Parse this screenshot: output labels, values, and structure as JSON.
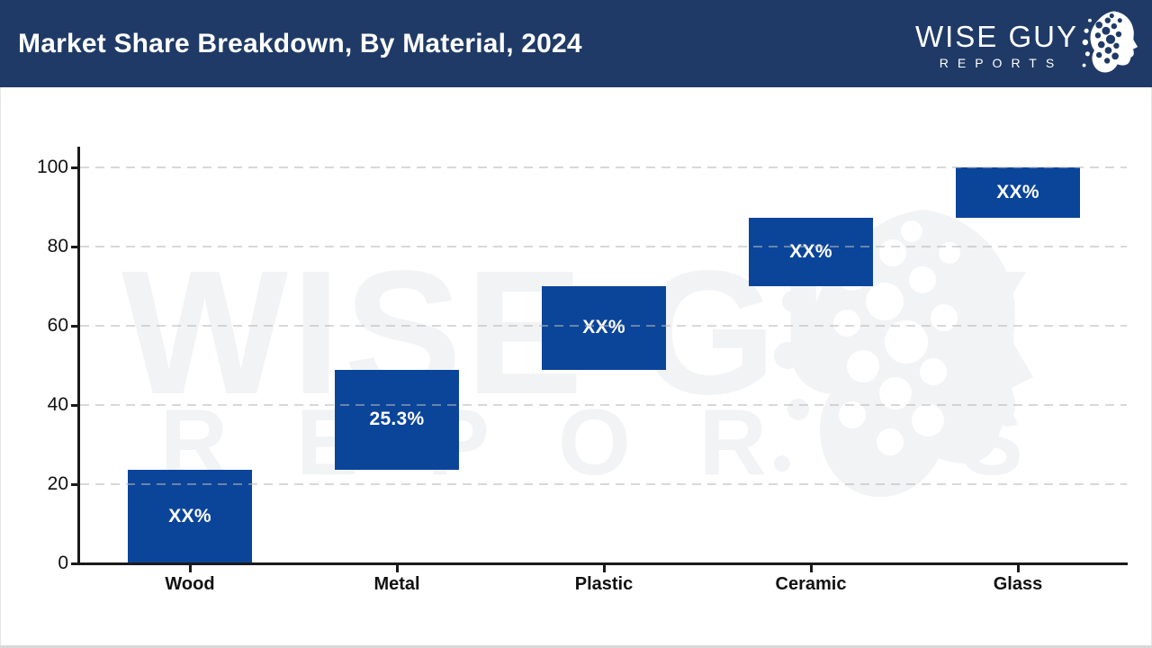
{
  "header": {
    "title": "Market Share Breakdown, By Material, 2024",
    "logo": {
      "line1": "WISE GUY",
      "line2": "REPORTS"
    }
  },
  "watermark": {
    "line1": "WISE GUY",
    "line2": "REPORTS"
  },
  "colors": {
    "header_bg": "#1F3A66",
    "bar": "#0B459A",
    "bar_label": "#FFFFFF",
    "axis": "#1A1A1A",
    "grid": "#D9D9D9",
    "watermark": "#F2F3F5"
  },
  "chart_data": {
    "type": "bar",
    "subtype": "waterfall",
    "title": "Market Share Breakdown, By Material, 2024",
    "categories": [
      "Wood",
      "Metal",
      "Plastic",
      "Ceramic",
      "Glass"
    ],
    "segments": [
      {
        "category": "Wood",
        "start": 0,
        "end": 23.6,
        "label": "XX%"
      },
      {
        "category": "Metal",
        "start": 23.6,
        "end": 48.9,
        "label": "25.3%"
      },
      {
        "category": "Plastic",
        "start": 48.9,
        "end": 70.0,
        "label": "XX%"
      },
      {
        "category": "Ceramic",
        "start": 70.0,
        "end": 87.3,
        "label": "XX%"
      },
      {
        "category": "Glass",
        "start": 87.3,
        "end": 100.0,
        "label": "XX%"
      }
    ],
    "y_ticks": [
      0,
      20,
      40,
      60,
      80,
      100
    ],
    "ylim": [
      0,
      105
    ],
    "xlabel": "",
    "ylabel": "",
    "grid": "horizontal-dashed",
    "legend": "none"
  }
}
